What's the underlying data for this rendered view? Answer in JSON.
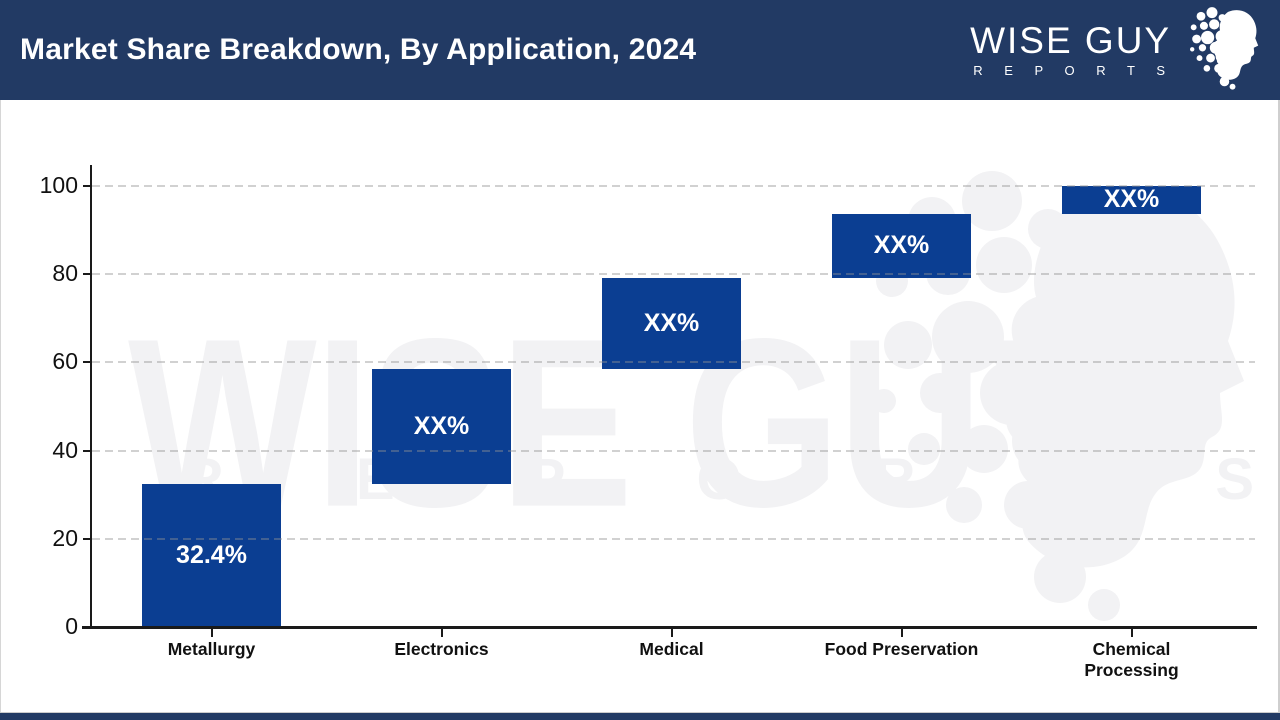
{
  "header": {
    "title": "Market Share Breakdown, By Application, 2024",
    "bg_color": "#223a64",
    "logo": {
      "line1": "WISE GUY",
      "line2": "R E P O R T S"
    }
  },
  "watermark": {
    "line1": "WISE GUY",
    "line2": "R E P O R T S"
  },
  "chart_data": {
    "type": "bar",
    "subtype": "waterfall",
    "title": "Market Share Breakdown, By Application, 2024",
    "categories": [
      "Metallurgy",
      "Electronics",
      "Medical",
      "Food Preservation",
      "Chemical Processing"
    ],
    "category_lines": [
      [
        "Metallurgy"
      ],
      [
        "Electronics"
      ],
      [
        "Medical"
      ],
      [
        "Food Preservation"
      ],
      [
        "Chemical",
        "Processing"
      ]
    ],
    "series": [
      {
        "name": "Market Share (%)",
        "starts": [
          0,
          32.4,
          58.6,
          79.2,
          93.7
        ],
        "ends": [
          32.4,
          58.6,
          79.2,
          93.7,
          100
        ]
      }
    ],
    "bar_labels": [
      "32.4%",
      "XX%",
      "XX%",
      "XX%",
      "XX%"
    ],
    "yticks": [
      0,
      20,
      40,
      60,
      80,
      100
    ],
    "ylim": [
      0,
      105
    ],
    "xlabel": "",
    "ylabel": "",
    "grid": "horizontal-dashed",
    "legend": "none",
    "bar_color": "#0b3e92",
    "bar_label_color": "#ffffff",
    "axis_color": "#1a1a1a"
  }
}
